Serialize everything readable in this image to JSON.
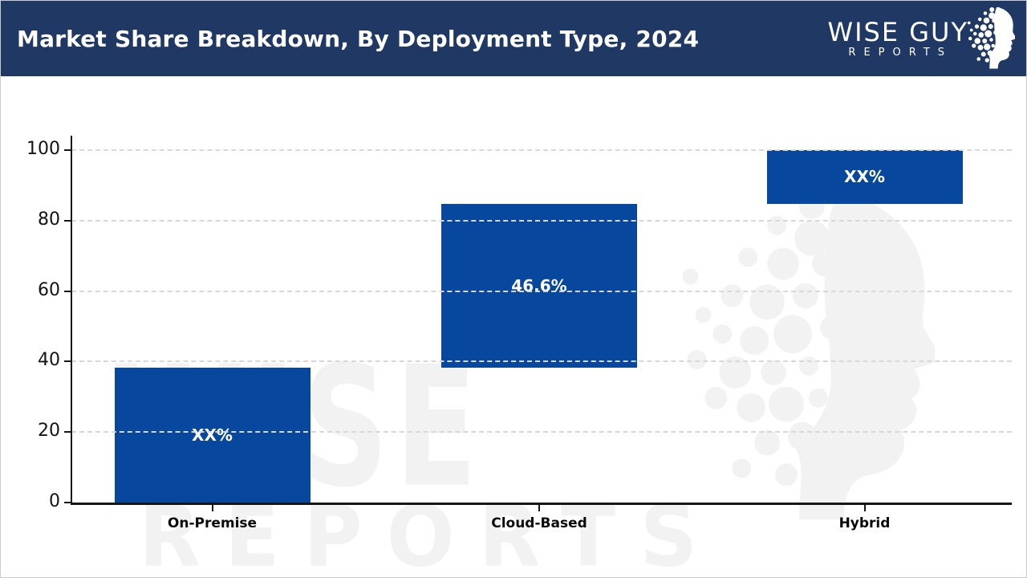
{
  "header": {
    "title": "Market Share Breakdown, By Deployment Type, 2024",
    "logo": {
      "line1": "WISE GUY",
      "line2": "REPORTS"
    }
  },
  "watermark": {
    "line1": "WISE",
    "line2": "REPORTS"
  },
  "chart_data": {
    "type": "bar",
    "subtype": "waterfall",
    "title": "Market Share Breakdown, By Deployment Type, 2024",
    "categories": [
      "On-Premise",
      "Cloud-Based",
      "Hybrid"
    ],
    "segments": [
      {
        "category": "On-Premise",
        "start": 0,
        "end": 38.2,
        "label": "XX%"
      },
      {
        "category": "Cloud-Based",
        "start": 38.2,
        "end": 84.8,
        "label": "46.6%"
      },
      {
        "category": "Hybrid",
        "start": 84.8,
        "end": 100,
        "label": "XX%"
      }
    ],
    "yticks": [
      0,
      20,
      40,
      60,
      80,
      100
    ],
    "ylim": [
      0,
      104
    ],
    "xlabel": "",
    "ylabel": "",
    "grid": "horizontal-dashed",
    "legend": "none"
  },
  "colors": {
    "header_bg": "#1f3864",
    "bar": "#08479e",
    "bar_label": "#ffffff",
    "axis": "#161616",
    "grid": "#d8d8d8",
    "watermark": "#f2f2f3",
    "page_border": "#c9cdd2"
  }
}
